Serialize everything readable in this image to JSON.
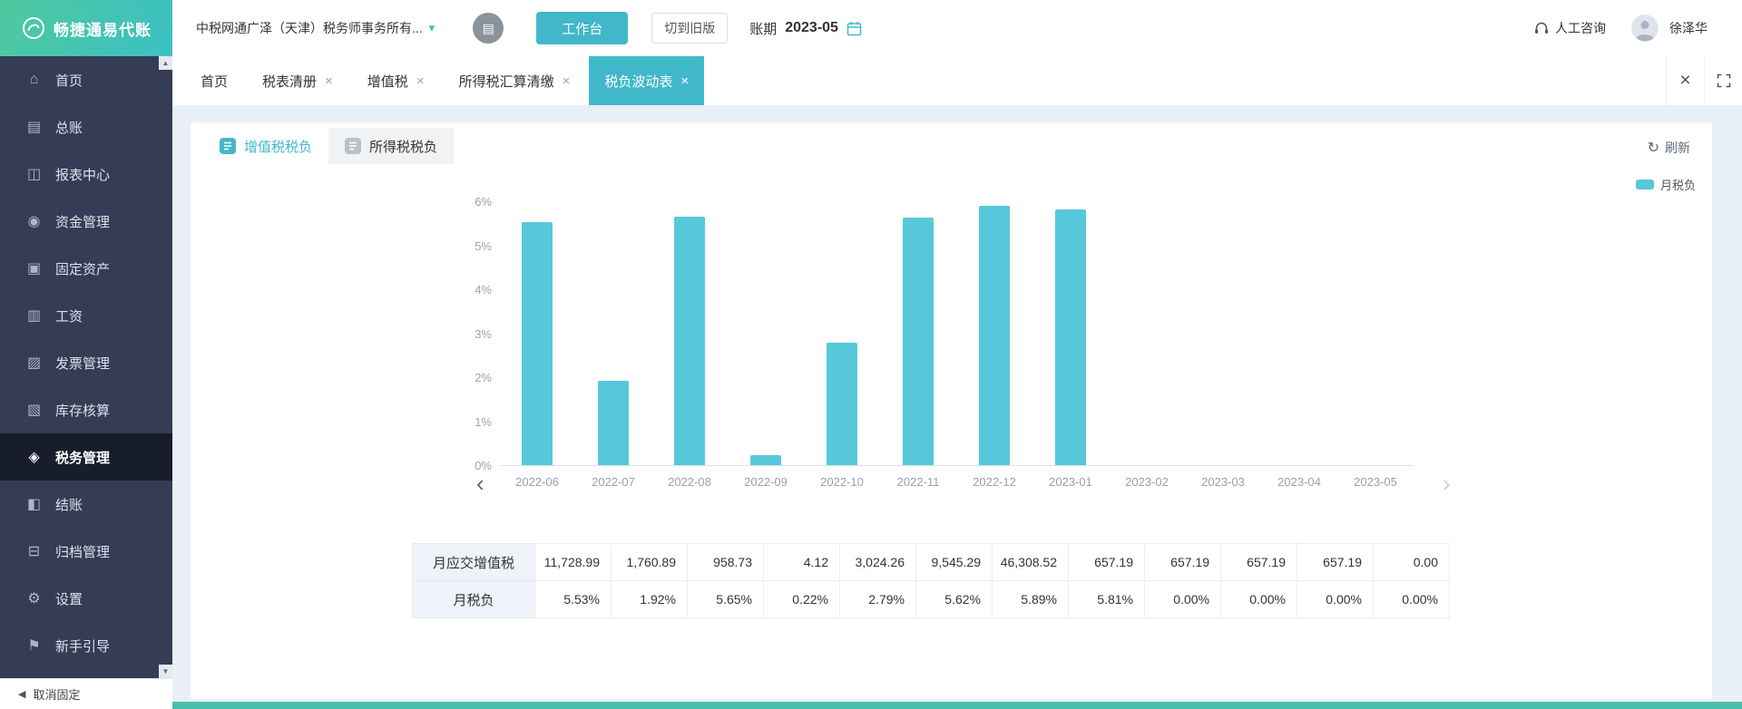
{
  "colors": {
    "accent": "#41b8c9",
    "bar": "#56c8da",
    "sidebar": "#343d55",
    "sidebar_active": "#171d2b",
    "bottom_strip": "#4abfab",
    "logo_grad_from": "#4ec99e",
    "logo_grad_to": "#3cc0c4"
  },
  "header": {
    "logo_text": "畅捷通易代账",
    "company_selector": "中税网通广泽（天津）税务师事务所有...",
    "workbench_label": "工作台",
    "switch_old_label": "切到旧版",
    "period_label": "账期",
    "period_value": "2023-05",
    "support_label": "人工咨询",
    "username": "徐泽华"
  },
  "sidebar": {
    "items": [
      {
        "id": "home",
        "icon": "home-icon",
        "label": "首页",
        "active": false
      },
      {
        "id": "general-ledger",
        "icon": "ledger-icon",
        "label": "总账",
        "active": false
      },
      {
        "id": "report-center",
        "icon": "reports-icon",
        "label": "报表中心",
        "active": false
      },
      {
        "id": "funds",
        "icon": "funds-icon",
        "label": "资金管理",
        "active": false
      },
      {
        "id": "fixed-assets",
        "icon": "fixed-assets-icon",
        "label": "固定资产",
        "active": false
      },
      {
        "id": "salary",
        "icon": "salary-icon",
        "label": "工资",
        "active": false
      },
      {
        "id": "invoice",
        "icon": "invoice-icon",
        "label": "发票管理",
        "active": false
      },
      {
        "id": "inventory",
        "icon": "inventory-icon",
        "label": "库存核算",
        "active": false
      },
      {
        "id": "tax",
        "icon": "tax-icon",
        "label": "税务管理",
        "active": true
      },
      {
        "id": "closing",
        "icon": "closing-icon",
        "label": "结账",
        "active": false
      },
      {
        "id": "archive",
        "icon": "archive-icon",
        "label": "归档管理",
        "active": false
      },
      {
        "id": "settings",
        "icon": "settings-icon",
        "label": "设置",
        "active": false
      },
      {
        "id": "guide",
        "icon": "guide-icon",
        "label": "新手引导",
        "active": false
      }
    ],
    "unpin_label": "取消固定"
  },
  "tabs": [
    {
      "id": "home",
      "label": "首页",
      "closable": false,
      "active": false
    },
    {
      "id": "tax-register",
      "label": "税表清册",
      "closable": true,
      "active": false
    },
    {
      "id": "vat",
      "label": "增值税",
      "closable": true,
      "active": false
    },
    {
      "id": "income-tax-settlement",
      "label": "所得税汇算清缴",
      "closable": true,
      "active": false
    },
    {
      "id": "tax-burden-fluctuation",
      "label": "税负波动表",
      "closable": true,
      "active": true
    }
  ],
  "content": {
    "subtabs": [
      {
        "label": "增值税税负",
        "active": true
      },
      {
        "label": "所得税税负",
        "active": false
      }
    ],
    "refresh_label": "刷新",
    "legend_label": "月税负"
  },
  "chart_data": {
    "type": "bar",
    "title": "",
    "categories": [
      "2022-06",
      "2022-07",
      "2022-08",
      "2022-09",
      "2022-10",
      "2022-11",
      "2022-12",
      "2023-01",
      "2023-02",
      "2023-03",
      "2023-04",
      "2023-05"
    ],
    "series": [
      {
        "name": "月税负",
        "values": [
          5.53,
          1.92,
          5.65,
          0.22,
          2.79,
          5.62,
          5.89,
          5.81,
          0,
          0,
          0,
          0
        ]
      }
    ],
    "unit": "%",
    "ylim": [
      0,
      6
    ],
    "yticks": [
      "0%",
      "1%",
      "2%",
      "3%",
      "4%",
      "5%",
      "6%"
    ],
    "grid": false,
    "legend_position": "top-right",
    "bar_color": "#56c8da"
  },
  "table": {
    "rows": [
      {
        "label": "月应交增值税",
        "values": [
          "11,728.99",
          "1,760.89",
          "958.73",
          "4.12",
          "3,024.26",
          "9,545.29",
          "46,308.52",
          "657.19",
          "657.19",
          "657.19",
          "657.19",
          "0.00"
        ]
      },
      {
        "label": "月税负",
        "values": [
          "5.53%",
          "1.92%",
          "5.65%",
          "0.22%",
          "2.79%",
          "5.62%",
          "5.89%",
          "5.81%",
          "0.00%",
          "0.00%",
          "0.00%",
          "0.00%"
        ]
      }
    ]
  }
}
